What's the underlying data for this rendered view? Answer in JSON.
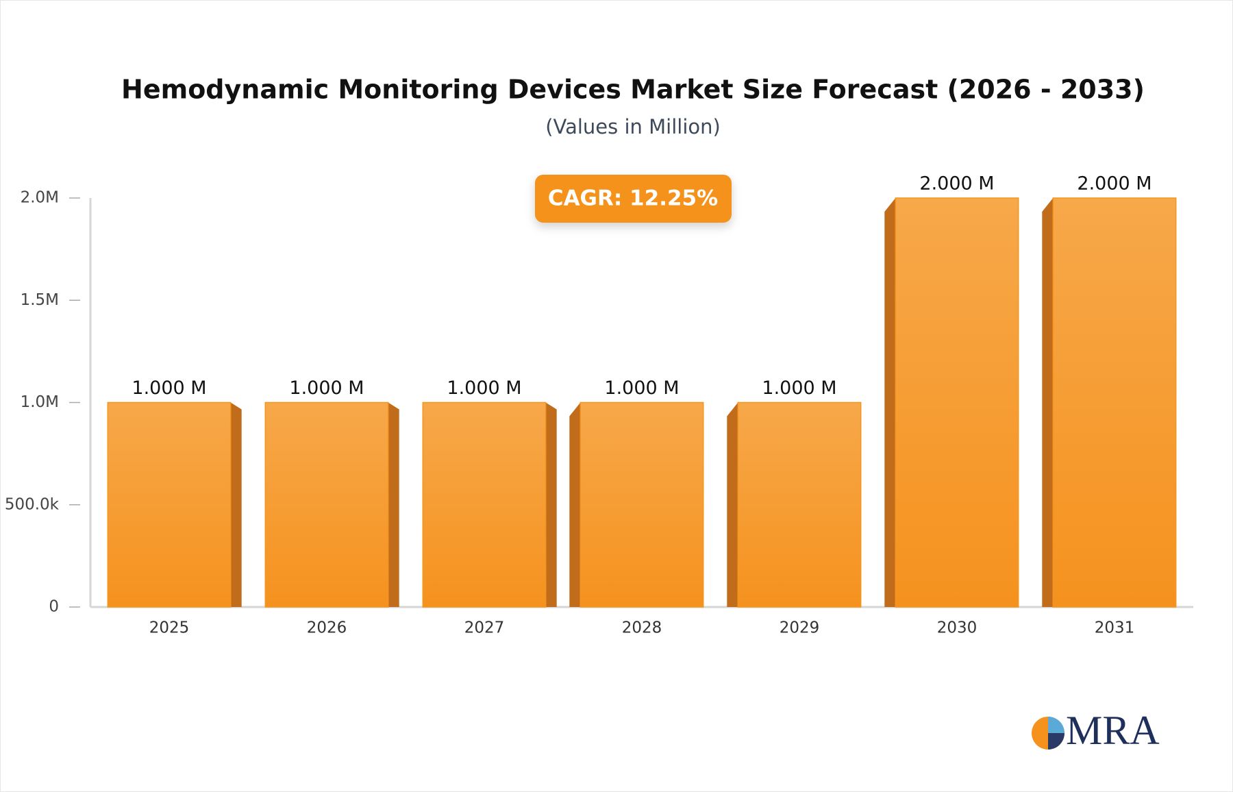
{
  "chart_data": {
    "type": "bar",
    "title": "Hemodynamic Monitoring Devices Market Size Forecast (2026 - 2033)",
    "subtitle": "(Values in Million)",
    "annotation": "CAGR: 12.25%",
    "categories": [
      "2025",
      "2026",
      "2027",
      "2028",
      "2029",
      "2030",
      "2031"
    ],
    "values": [
      1000000,
      1000000,
      1000000,
      1000000,
      1000000,
      2000000,
      2000000
    ],
    "value_labels": [
      "1.000 M",
      "1.000 M",
      "1.000 M",
      "1.000 M",
      "1.000 M",
      "2.000 M",
      "2.000 M"
    ],
    "color": "#f5951f",
    "ylim": [
      0,
      2000000
    ],
    "yticks": [
      0,
      {
        "value": 500000,
        "label": "500.0k"
      },
      {
        "value": 1000000,
        "label": "1.0M"
      },
      {
        "value": 1500000,
        "label": "1.5M"
      },
      {
        "value": 2000000,
        "label": "2.0M"
      }
    ],
    "grid": false
  },
  "logo": "MRA"
}
